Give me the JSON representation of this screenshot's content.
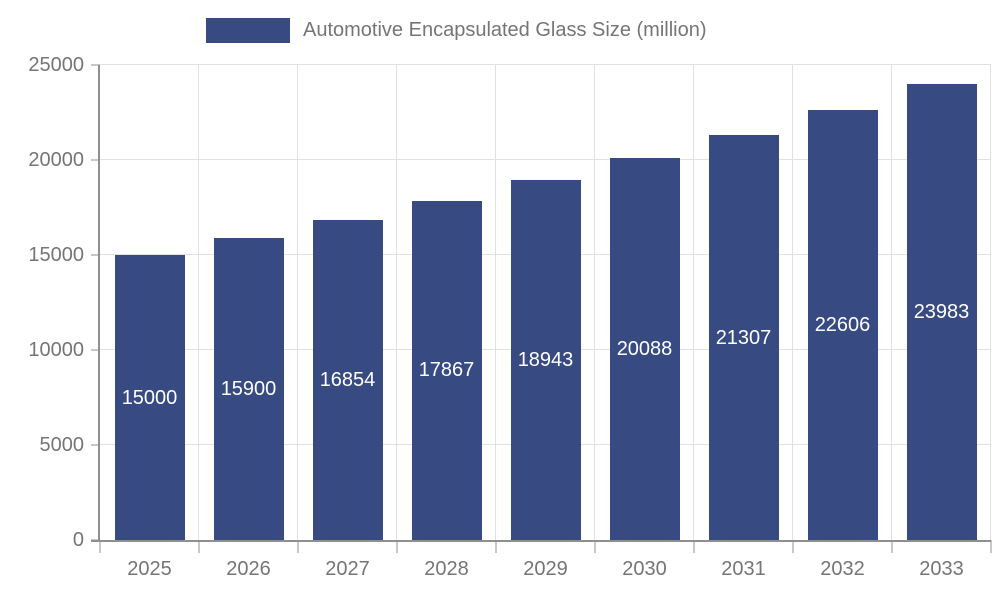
{
  "legend": {
    "label": "Automotive Encapsulated Glass Size (million)"
  },
  "chart_data": {
    "type": "bar",
    "title": "Automotive Encapsulated Glass Size (million)",
    "categories": [
      "2025",
      "2026",
      "2027",
      "2028",
      "2029",
      "2030",
      "2031",
      "2032",
      "2033"
    ],
    "series": [
      {
        "name": "Automotive Encapsulated Glass Size (million)",
        "values": [
          15000,
          15900,
          16854,
          17867,
          18943,
          20088,
          21307,
          22606,
          23983
        ]
      }
    ],
    "data_labels_shown": true,
    "xlabel": "",
    "ylabel": "",
    "ylim": [
      0,
      25000
    ],
    "yticks": [
      0,
      5000,
      10000,
      15000,
      20000,
      25000
    ],
    "grid": true,
    "legend_position": "top",
    "colors": {
      "bar": "#374B82",
      "bar_value_text": "#ffffff",
      "axis_line": "#8f8f8f",
      "tick": "#c8c8c8",
      "gridline": "#e0e0e0",
      "axis_text": "#757575",
      "legend_text": "#757575",
      "background": "#ffffff"
    }
  }
}
